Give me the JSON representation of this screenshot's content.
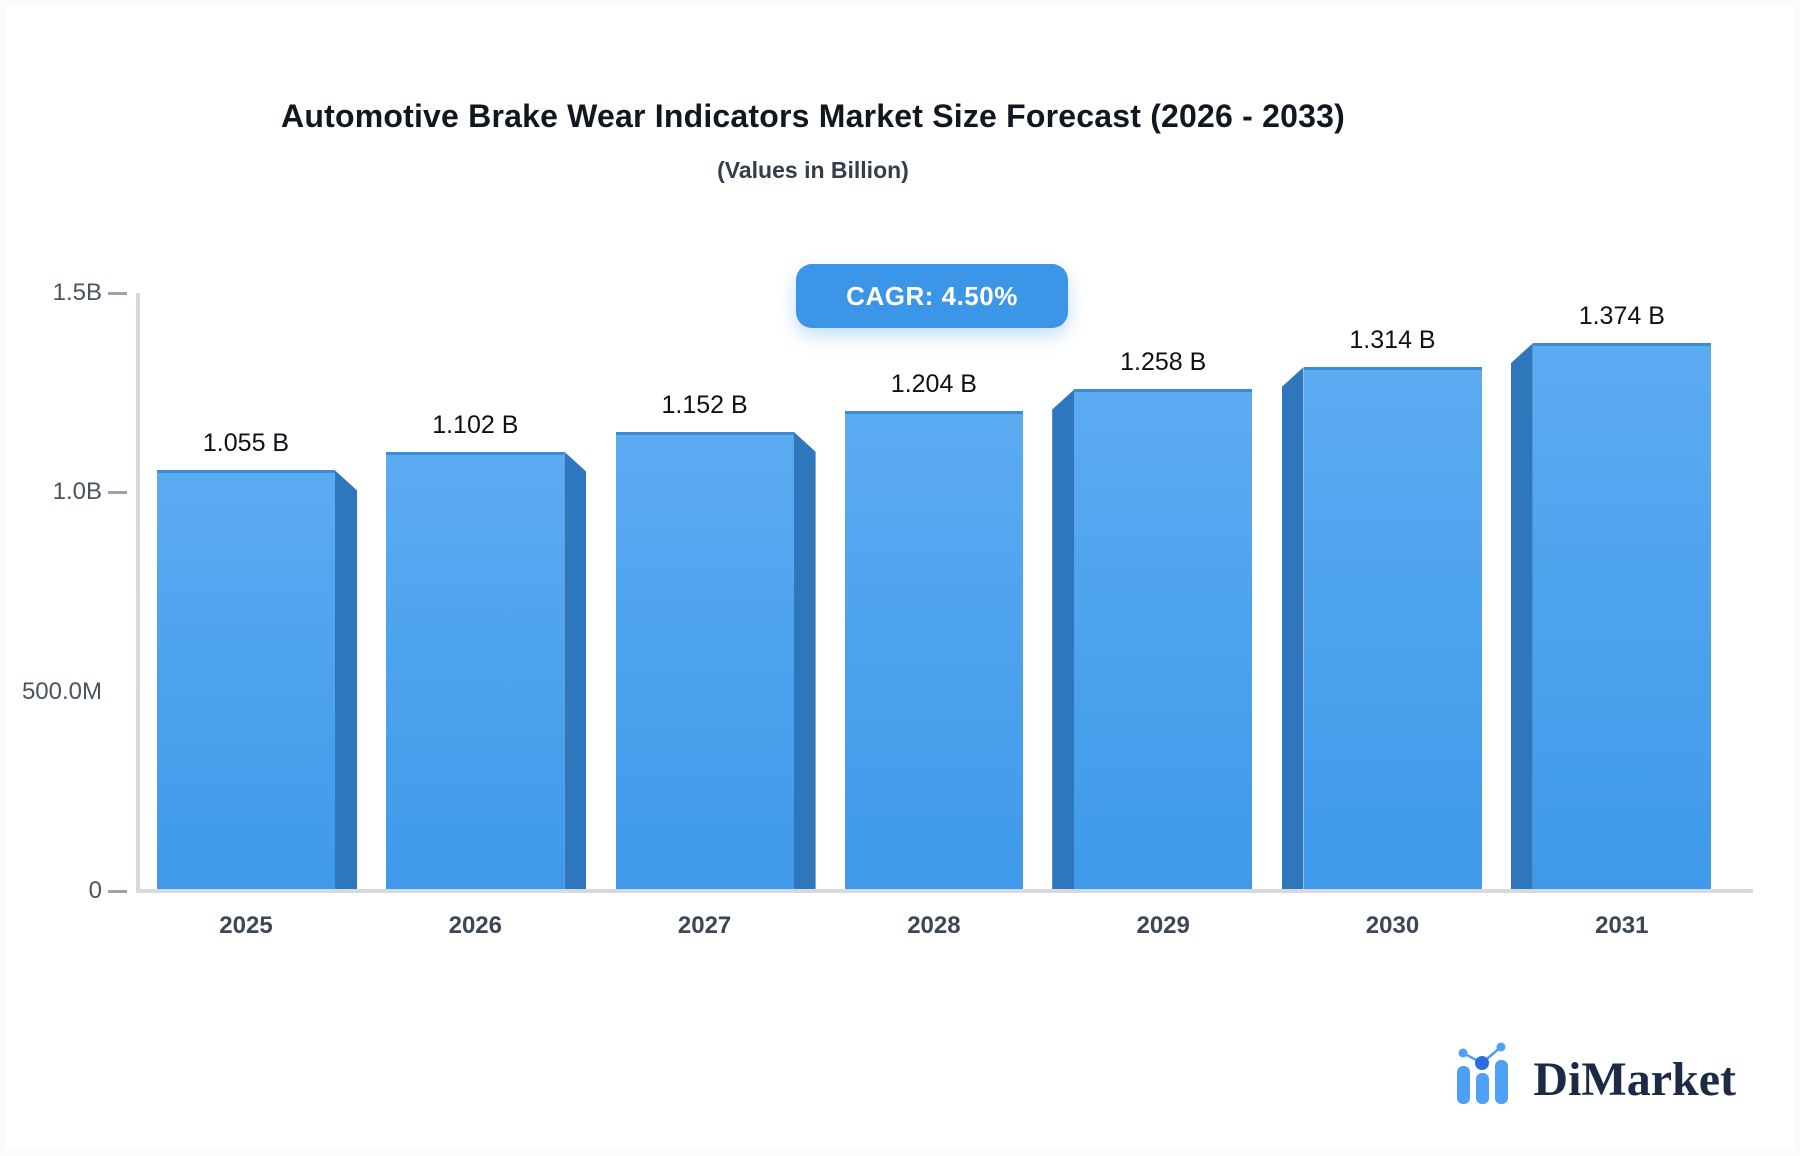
{
  "header": {
    "title": "Automotive Brake Wear Indicators Market Size Forecast (2026 - 2033)",
    "subtitle": "(Values in Billion)"
  },
  "badge": {
    "label": "CAGR: 4.50%",
    "color": "#3c96e8"
  },
  "chart_data": {
    "type": "bar",
    "title": "Automotive Brake Wear Indicators Market Size Forecast (2026 - 2033)",
    "subtitle": "(Values in Billion)",
    "unit": "Billion USD",
    "cagr_percent": 4.5,
    "categories": [
      "2025",
      "2026",
      "2027",
      "2028",
      "2029",
      "2030",
      "2031"
    ],
    "values": [
      1.055,
      1.102,
      1.152,
      1.204,
      1.258,
      1.314,
      1.374
    ],
    "value_labels": [
      "1.055 B",
      "1.102 B",
      "1.152 B",
      "1.204 B",
      "1.258 B",
      "1.314 B",
      "1.374 B"
    ],
    "ylim": [
      0,
      1.5
    ],
    "y_ticks": [
      {
        "label": "1.5B",
        "value": 1.5,
        "tick": true
      },
      {
        "label": "1.0B",
        "value": 1.0,
        "tick": true
      },
      {
        "label": "500.0M",
        "value": 0.5,
        "tick": false
      },
      {
        "label": "0",
        "value": 0.0,
        "tick": true
      }
    ],
    "legend": [],
    "grid": false,
    "bar_color": "#4ba1ed",
    "bar_side_color": "#2f77bc",
    "axis_color": "#d7d9de"
  },
  "footer": {
    "brand": "DiMarket"
  }
}
